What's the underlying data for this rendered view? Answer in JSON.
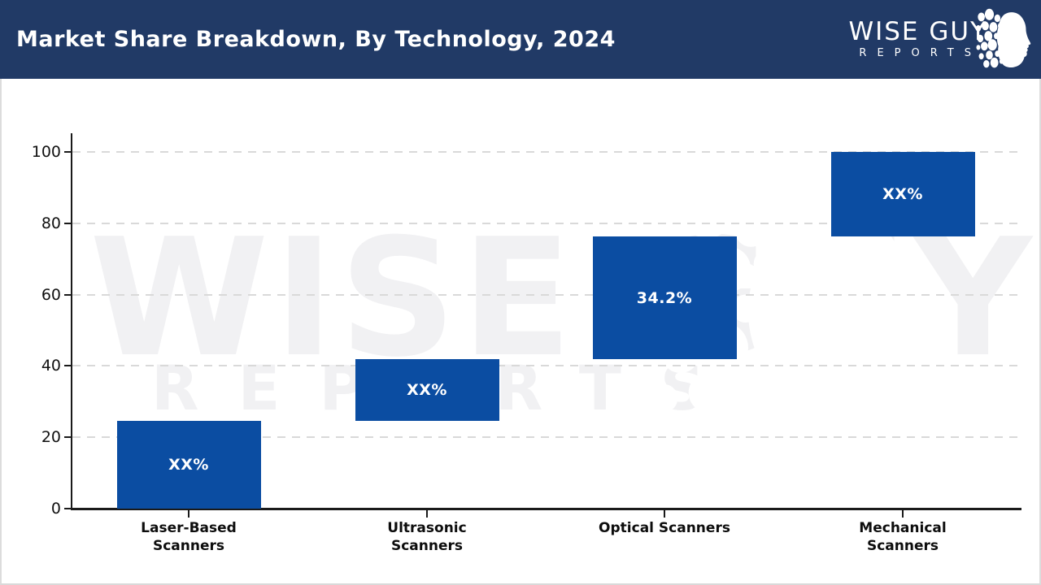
{
  "header": {
    "title": "Market Share Breakdown, By Technology, 2024",
    "logo": {
      "line1": "WISE GUY",
      "line2": "REPORTS"
    }
  },
  "watermark": {
    "line1": "WISE GUY",
    "line2": "REPORTS"
  },
  "colors": {
    "header_bg": "#213a66",
    "bar": "#0b4da2",
    "bar_label": "#ffffff",
    "watermark": "#f1f1f3",
    "gridline": "#d9d9d9",
    "axis": "#1a1a1a",
    "border": "#dcdcdc"
  },
  "chart_data": {
    "type": "bar",
    "subtype": "waterfall",
    "title": "Market Share Breakdown, By Technology, 2024",
    "categories": [
      "Laser-Based Scanners",
      "Ultrasonic Scanners",
      "Optical Scanners",
      "Mechanical Scanners"
    ],
    "category_lines": [
      [
        "Laser-Based",
        "Scanners"
      ],
      [
        "Ultrasonic",
        "Scanners"
      ],
      [
        "Optical Scanners"
      ],
      [
        "Mechanical",
        "Scanners"
      ]
    ],
    "segments": [
      {
        "category": "Laser-Based Scanners",
        "from": 0,
        "to": 24.5,
        "label": "XX%"
      },
      {
        "category": "Ultrasonic Scanners",
        "from": 24.5,
        "to": 42,
        "label": "XX%"
      },
      {
        "category": "Optical Scanners",
        "from": 42,
        "to": 76.2,
        "label": "34.2%"
      },
      {
        "category": "Mechanical Scanners",
        "from": 76.2,
        "to": 100,
        "label": "XX%"
      }
    ],
    "xlabel": "",
    "ylabel": "",
    "ylim": [
      0,
      105
    ],
    "yticks": [
      0,
      20,
      40,
      60,
      80,
      100
    ],
    "grid": "dashed-horizontal",
    "legend": "none"
  }
}
